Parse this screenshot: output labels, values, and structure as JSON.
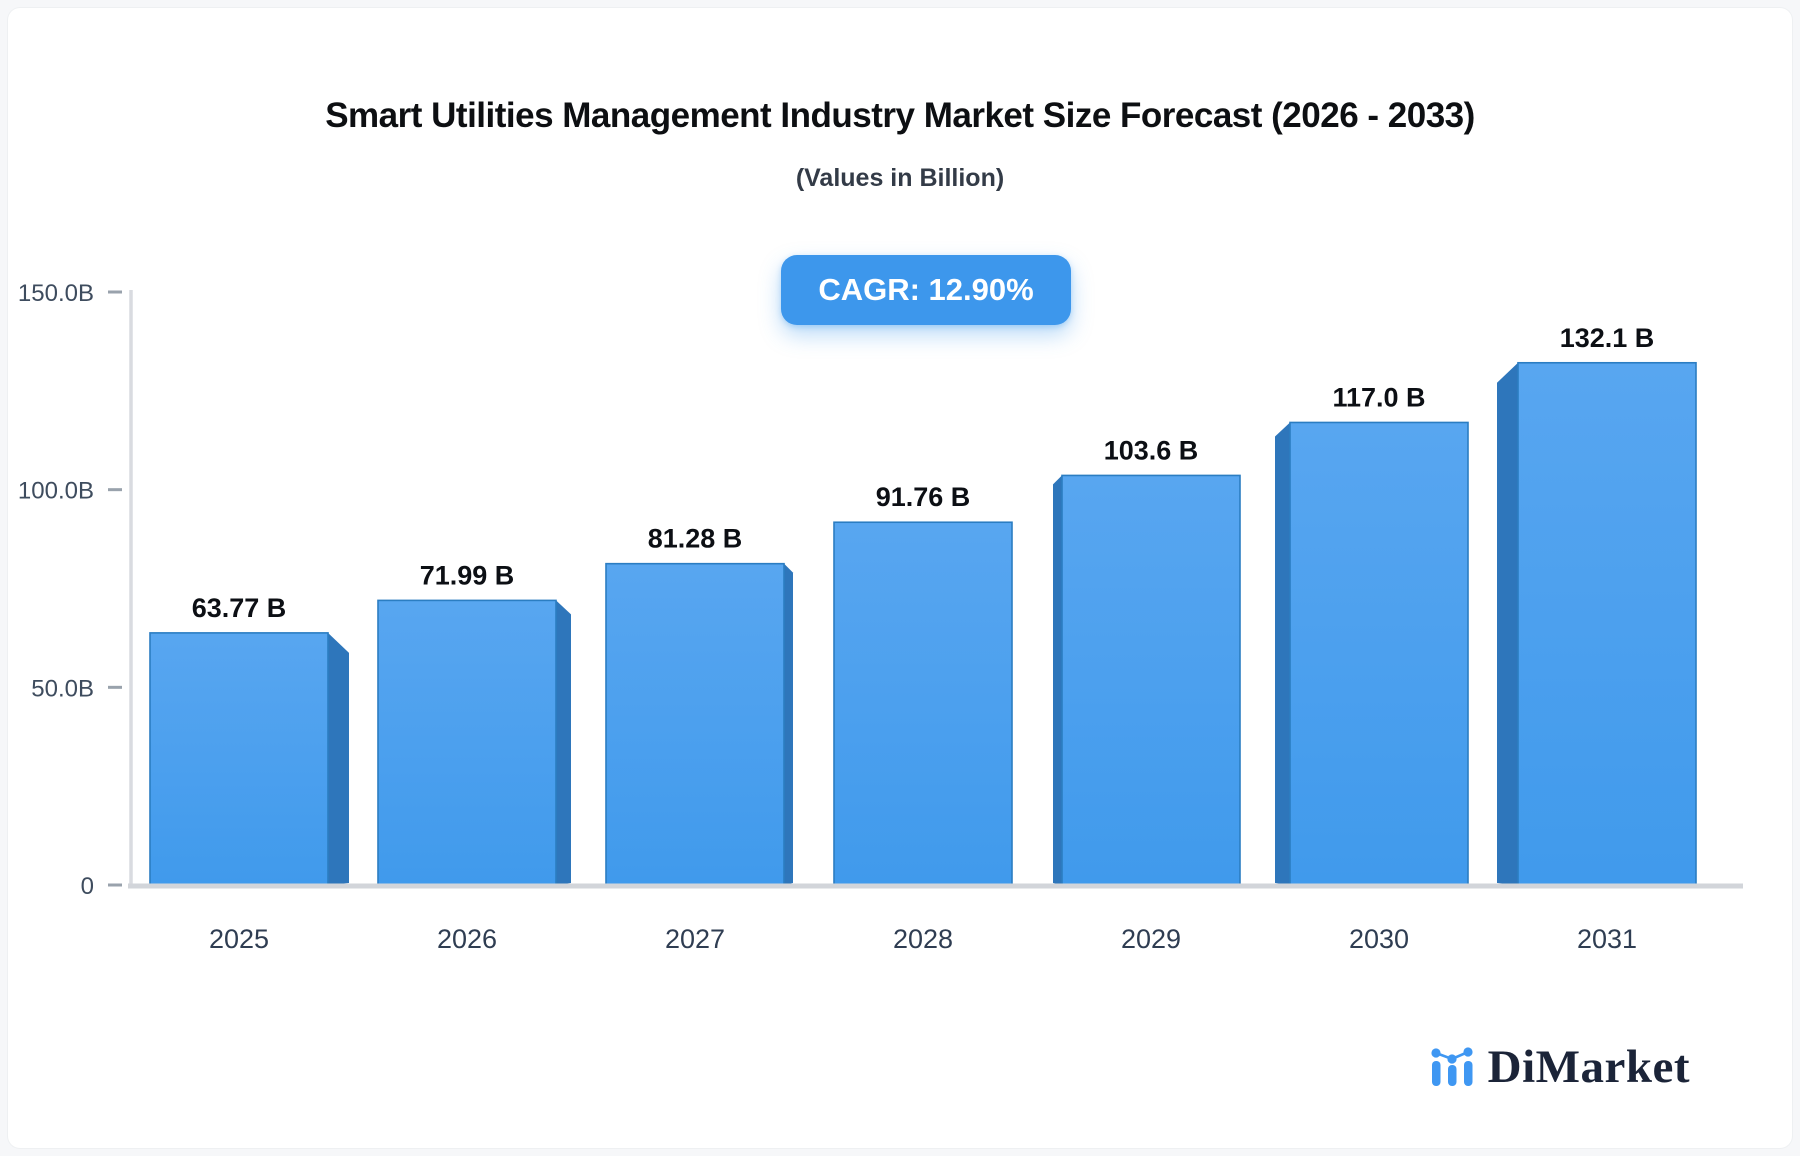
{
  "page": {
    "background": "#f6f7f9",
    "card_background": "#ffffff"
  },
  "chart_data": {
    "type": "bar",
    "title": "Smart Utilities Management Industry Market Size Forecast (2026 - 2033)",
    "subtitle": "(Values in Billion)",
    "badge_label": "CAGR: 12.90%",
    "categories": [
      "2025",
      "2026",
      "2027",
      "2028",
      "2029",
      "2030",
      "2031"
    ],
    "values": [
      63.77,
      71.99,
      81.28,
      91.76,
      103.6,
      117.0,
      132.1
    ],
    "value_labels": [
      "63.77 B",
      "71.99 B",
      "81.28 B",
      "91.76 B",
      "103.6 B",
      "117.0 B",
      "132.1 B"
    ],
    "unit": "Billion",
    "ylim": [
      0,
      150
    ],
    "ytick_values": [
      0,
      50,
      100,
      150
    ],
    "ytick_labels": [
      "0",
      "50.0B",
      "100.0B",
      "150.0B"
    ],
    "grid": "off",
    "legend": "none",
    "style": "3d-perspective-bars",
    "colors": {
      "bar_front_top": "#58a6f0",
      "bar_front_bottom": "#409aec",
      "bar_edge": "#2b7dc2",
      "bar_side": "#2e76bb",
      "badge_bg": "#3d97ec",
      "badge_text": "#ffffff",
      "axis_line": "#d9dbe0",
      "baseline": "#d2d5da",
      "tick_mark": "#99a2ac",
      "ytick_label": "#3e4c5e",
      "xtick_label": "#2f3d52",
      "value_label": "#0c0f14"
    }
  },
  "logo": {
    "icon": "bar-chart-logo-icon",
    "text": "DiMarket",
    "icon_color": "#3f97f2",
    "text_color": "#1b2438"
  }
}
